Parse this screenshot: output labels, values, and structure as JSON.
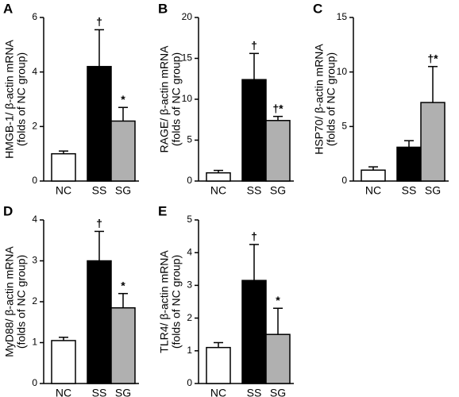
{
  "chart_data": [
    {
      "type": "bar",
      "panel": "A",
      "ylabel": [
        "HMGB-1/ β-actin mRNA",
        "(folds of NC group)"
      ],
      "categories": [
        "NC",
        "SS",
        "SG"
      ],
      "values": [
        1.0,
        4.2,
        2.2
      ],
      "errors": [
        0.1,
        1.35,
        0.5
      ],
      "annotations": [
        null,
        "†",
        "*"
      ],
      "colors": [
        "#ffffff",
        "#000000",
        "#b0b0b0"
      ],
      "ylim": [
        0,
        6
      ],
      "yticks": [
        0,
        2,
        4,
        6
      ]
    },
    {
      "type": "bar",
      "panel": "B",
      "ylabel": [
        "RAGE/ β-actin mRNA",
        "(folds of NC group)"
      ],
      "categories": [
        "NC",
        "SS",
        "SG"
      ],
      "values": [
        1.0,
        12.4,
        7.4
      ],
      "errors": [
        0.3,
        3.2,
        0.5
      ],
      "annotations": [
        null,
        "†",
        "†*"
      ],
      "colors": [
        "#ffffff",
        "#000000",
        "#b0b0b0"
      ],
      "ylim": [
        0,
        20
      ],
      "yticks": [
        0,
        5,
        10,
        15,
        20
      ]
    },
    {
      "type": "bar",
      "panel": "C",
      "ylabel": [
        "HSP70/ β-actin mRNA",
        "(folds of NC group)"
      ],
      "categories": [
        "NC",
        "SS",
        "SG"
      ],
      "values": [
        1.0,
        3.1,
        7.2
      ],
      "errors": [
        0.3,
        0.6,
        3.3
      ],
      "annotations": [
        null,
        null,
        "†*"
      ],
      "colors": [
        "#ffffff",
        "#000000",
        "#b0b0b0"
      ],
      "ylim": [
        0,
        15
      ],
      "yticks": [
        0,
        5,
        10,
        15
      ]
    },
    {
      "type": "bar",
      "panel": "D",
      "ylabel": [
        "MyD88/ β-actin mRNA",
        "(folds of NC group)"
      ],
      "categories": [
        "NC",
        "SS",
        "SG"
      ],
      "values": [
        1.05,
        3.0,
        1.85
      ],
      "errors": [
        0.08,
        0.72,
        0.35
      ],
      "annotations": [
        null,
        "†",
        "*"
      ],
      "colors": [
        "#ffffff",
        "#000000",
        "#b0b0b0"
      ],
      "ylim": [
        0,
        4
      ],
      "yticks": [
        0,
        1,
        2,
        3,
        4
      ]
    },
    {
      "type": "bar",
      "panel": "E",
      "ylabel": [
        "TLR4/ β-actin mRNA",
        "(folds of NC group)"
      ],
      "categories": [
        "NC",
        "SS",
        "SG"
      ],
      "values": [
        1.1,
        3.15,
        1.5
      ],
      "errors": [
        0.15,
        1.1,
        0.8
      ],
      "annotations": [
        null,
        "†",
        "*"
      ],
      "colors": [
        "#ffffff",
        "#000000",
        "#b0b0b0"
      ],
      "ylim": [
        0,
        5
      ],
      "yticks": [
        0,
        1,
        2,
        3,
        4,
        5
      ]
    }
  ]
}
